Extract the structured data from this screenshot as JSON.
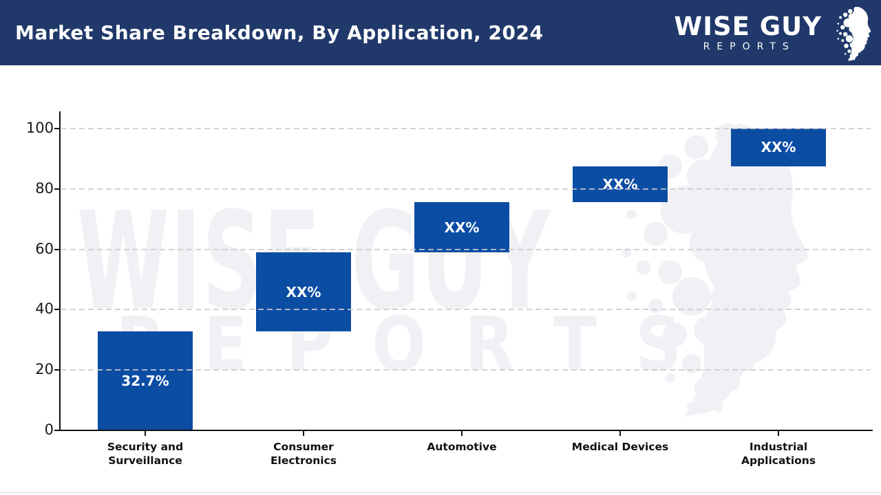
{
  "header": {
    "title": "Market Share Breakdown, By Application, 2024",
    "logo": {
      "brand_line1": "WISE GUY",
      "brand_line2": "REPORTS"
    }
  },
  "watermark": {
    "line1": "WISE GUY",
    "line2": "R E P O R T S"
  },
  "chart_data": {
    "type": "bar",
    "subtype": "waterfall",
    "title": "Market Share Breakdown, By Application, 2024",
    "categories": [
      "Security and Surveillance",
      "Consumer Electronics",
      "Automotive",
      "Medical Devices",
      "Industrial Applications"
    ],
    "category_display": [
      "Security and\nSurveillance",
      "Consumer\nElectronics",
      "Automotive",
      "Medical Devices",
      "Industrial\nApplications"
    ],
    "segments": [
      {
        "start": 0,
        "end": 32.7,
        "label": "32.7%"
      },
      {
        "start": 32.7,
        "end": 58.9,
        "label": "XX%"
      },
      {
        "start": 58.9,
        "end": 75.7,
        "label": "XX%"
      },
      {
        "start": 75.7,
        "end": 87.5,
        "label": "XX%"
      },
      {
        "start": 87.5,
        "end": 100,
        "label": "XX%"
      }
    ],
    "yticks": [
      0,
      20,
      40,
      60,
      80,
      100
    ],
    "ylim": [
      0,
      105
    ],
    "xlabel": "",
    "ylabel": "",
    "grid": "horizontal-dashed",
    "legend": "none",
    "bar_color": "#0c4da4"
  },
  "colors": {
    "header_bg": "#20396a",
    "bar": "#0c4da4",
    "grid": "#d9d9d9",
    "axis": "#111111",
    "watermark": "#f0f1f4",
    "title_text": "#ffffff",
    "bar_label_text": "#ffffff"
  }
}
